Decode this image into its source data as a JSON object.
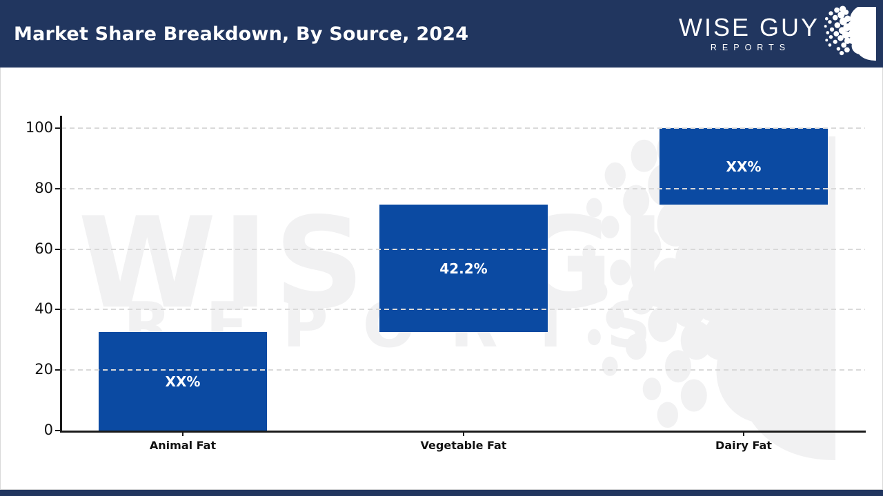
{
  "header": {
    "title": "Market Share Breakdown, By Source, 2024",
    "bg_color": "#21365f",
    "logo": {
      "wordmark": "WISE GUY",
      "subtext": "REPORTS"
    }
  },
  "watermark": {
    "wordmark": "WISE GUY",
    "subtext": "REPORTS"
  },
  "chart_data": {
    "type": "bar",
    "subtype": "floating_segment_breakdown",
    "title": "Market Share Breakdown, By Source, 2024",
    "categories": [
      "Animal Fat",
      "Vegetable Fat",
      "Dairy Fat"
    ],
    "segments": [
      {
        "category": "Animal Fat",
        "start": 0,
        "end": 32.5,
        "value_label": "XX%"
      },
      {
        "category": "Vegetable Fat",
        "start": 32.5,
        "end": 74.7,
        "value_label": "42.2%"
      },
      {
        "category": "Dairy Fat",
        "start": 74.7,
        "end": 100,
        "value_label": "XX%"
      }
    ],
    "xlabel": "",
    "ylabel": "",
    "yticks": [
      0,
      20,
      40,
      60,
      80,
      100
    ],
    "ylim": [
      0,
      103.6
    ],
    "grid": {
      "axis": "y",
      "style": "dashed",
      "color": "#d9d9d9",
      "drawn_over_bars": true
    },
    "bar_color": "#0b4aa2",
    "bar_label_color": "#ffffff",
    "axis_color": "#1a1a1a",
    "legend": "none"
  },
  "footer": {
    "bg_color": "#21365f"
  }
}
